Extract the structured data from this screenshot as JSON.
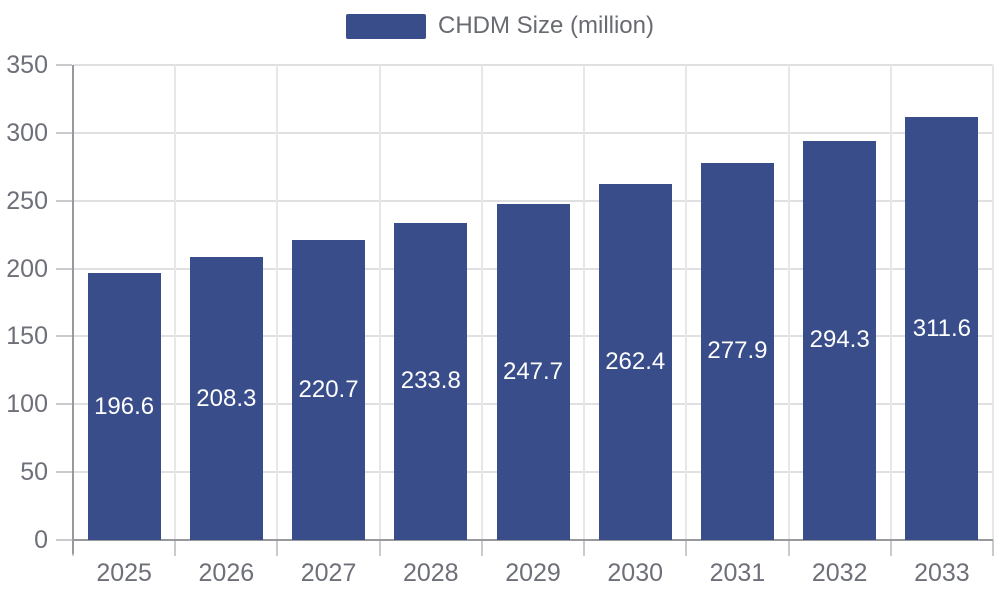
{
  "legend": {
    "label": "CHDM Size (million)",
    "swatch_color": "#394d8a"
  },
  "chart_data": {
    "type": "bar",
    "title": "",
    "categories": [
      "2025",
      "2026",
      "2027",
      "2028",
      "2029",
      "2030",
      "2031",
      "2032",
      "2033"
    ],
    "values": [
      196.6,
      208.3,
      220.7,
      233.8,
      247.7,
      262.4,
      277.9,
      294.3,
      311.6
    ],
    "series": [
      {
        "name": "CHDM Size (million)",
        "values": [
          196.6,
          208.3,
          220.7,
          233.8,
          247.7,
          262.4,
          277.9,
          294.3,
          311.6
        ]
      }
    ],
    "xlabel": "",
    "ylabel": "",
    "ylim": [
      0,
      350
    ],
    "ytick_interval": 50,
    "yticks": [
      0,
      50,
      100,
      150,
      200,
      250,
      300,
      350
    ],
    "grid": true,
    "legend_position": "top",
    "bar_color": "#394d8a",
    "bar_value_label_color": "#ffffff",
    "axis_text_color": "#6e7079"
  }
}
